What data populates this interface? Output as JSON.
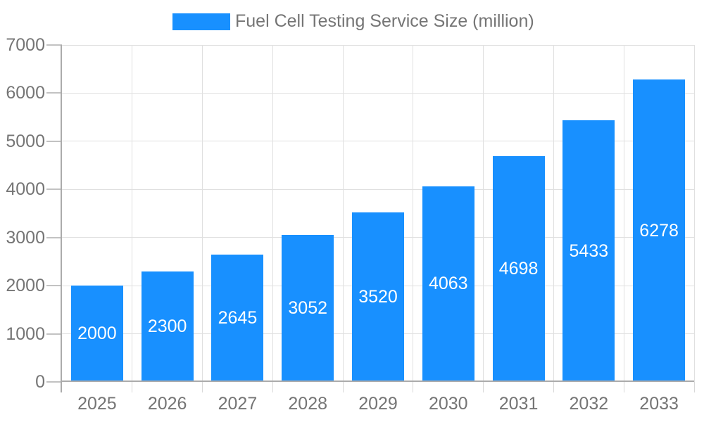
{
  "legend": {
    "label": "Fuel Cell Testing Service Size (million)",
    "swatch_color": "#1890FF"
  },
  "chart_data": {
    "type": "bar",
    "title": "Fuel Cell Testing Service Size (million)",
    "categories": [
      "2025",
      "2026",
      "2027",
      "2028",
      "2029",
      "2030",
      "2031",
      "2032",
      "2033"
    ],
    "values": [
      2000,
      2300,
      2645,
      3052,
      3520,
      4063,
      4698,
      5433,
      6278
    ],
    "xlabel": "",
    "ylabel": "",
    "ylim": [
      0,
      7000
    ],
    "yticks": [
      0,
      1000,
      2000,
      3000,
      4000,
      5000,
      6000,
      7000
    ],
    "grid": true,
    "legend_position": "top-center",
    "bar_color": "#1890FF",
    "value_label_color": "#FFFFFF",
    "axis_text_color": "#757575",
    "grid_color": "#E0E0E0",
    "axis_line_color": "#ABABAB",
    "y_tick_color": "#C2C2C2",
    "x_tick_color": "#D8D8D8"
  }
}
